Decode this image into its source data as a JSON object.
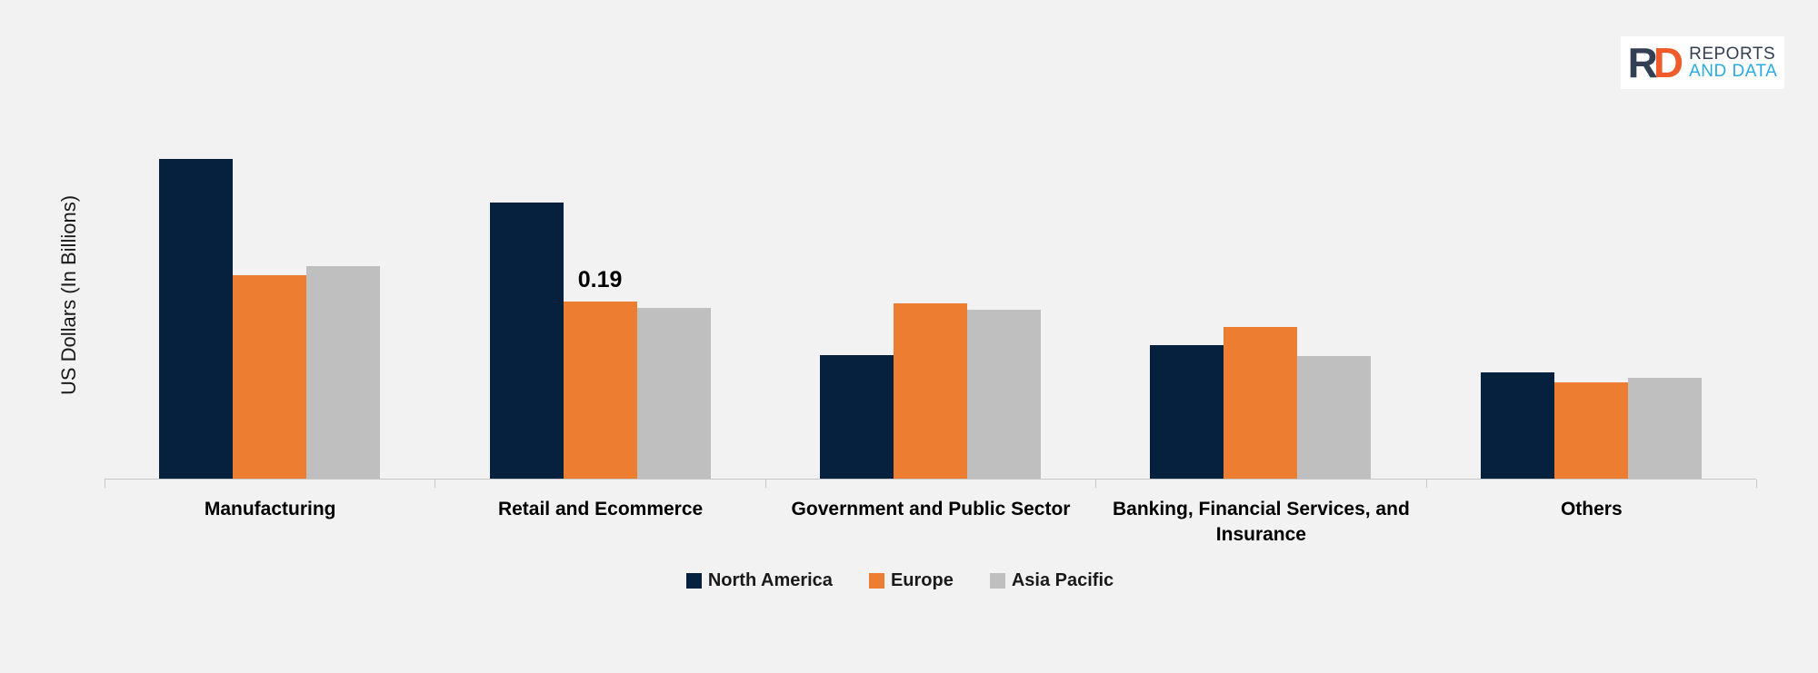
{
  "logo": {
    "mark_r": "R",
    "mark_d": "D",
    "line1": "REPORTS",
    "line2": "AND DATA",
    "colors": {
      "mark_r": "#333f54",
      "mark_d": "#f05b2c",
      "line1": "#333f54",
      "line2": "#29aae1",
      "box_background": "#ffffff"
    }
  },
  "page": {
    "background": "#f2f2f2",
    "axis_color": "#c6c6c6"
  },
  "chart_data": {
    "type": "bar",
    "title": "",
    "xlabel": "",
    "ylabel": "US Dollars (In Billions)",
    "categories": [
      "Manufacturing",
      "Retail and Ecommerce",
      "Government and Public Sector",
      "Banking, Financial Services, and Insurance",
      "Others"
    ],
    "series": [
      {
        "name": "North America",
        "color": "#06213e",
        "values": [
          0.343,
          0.296,
          0.133,
          0.143,
          0.114
        ]
      },
      {
        "name": "Europe",
        "color": "#ed7d31",
        "values": [
          0.218,
          0.19,
          0.188,
          0.163,
          0.103
        ]
      },
      {
        "name": "Asia Pacific",
        "color": "#bfbfbf",
        "values": [
          0.228,
          0.183,
          0.181,
          0.132,
          0.108
        ]
      }
    ],
    "data_labels": [
      {
        "category_index": 1,
        "series_index": 1,
        "category": "Retail and Ecommerce",
        "series": "Europe",
        "text": "0.19"
      }
    ],
    "ylim": [
      0,
      0.4
    ],
    "grid": false,
    "legend_position": "bottom",
    "y_axis_ticks_visible": false
  }
}
